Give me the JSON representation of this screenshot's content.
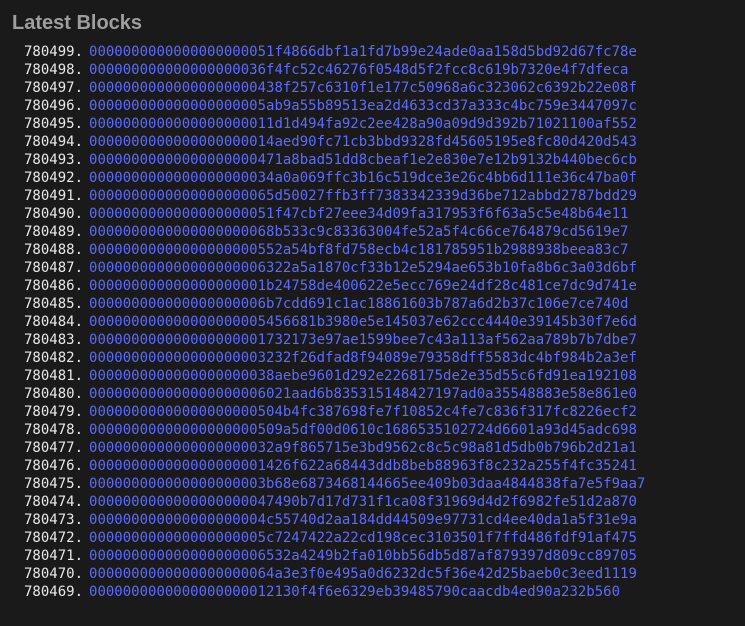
{
  "title": "Latest Blocks",
  "text_color": "#e8e8e8",
  "hash_color": "#5c6bff",
  "title_color": "#9e9e9e",
  "background_color": "#1a1a1a",
  "font_size": 14,
  "line_height": 18,
  "blocks": [
    {
      "height": "780499",
      "hash": "0000000000000000000051f4866dbf1a1fd7b99e24ade0aa158d5bd92d67fc78e"
    },
    {
      "height": "780498",
      "hash": "000000000000000000036f4fc52c46276f0548d5f2fcc8c619b7320e4f7dfeca"
    },
    {
      "height": "780497",
      "hash": "00000000000000000000438f257c6310f1e177c50968a6c323062c6392b22e08f"
    },
    {
      "height": "780496",
      "hash": "000000000000000000005ab9a55b89513ea2d4633cd37a333c4bc759e3447097c"
    },
    {
      "height": "780495",
      "hash": "0000000000000000000011d1d494fa92c2ee428a90a09d9d392b71021100af552"
    },
    {
      "height": "780494",
      "hash": "0000000000000000000014aed90fc71cb3bbd9328fd45605195e8fc80d420d543"
    },
    {
      "height": "780493",
      "hash": "00000000000000000000471a8bad51dd8cbeaf1e2e830e7e12b9132b440bec6cb"
    },
    {
      "height": "780492",
      "hash": "0000000000000000000034a0a069ffc3b16c519dce3e26c4bb6d111e36c47ba0f"
    },
    {
      "height": "780491",
      "hash": "0000000000000000000065d50027ffb3ff7383342339d36be712abbd2787bdd29"
    },
    {
      "height": "780490",
      "hash": "0000000000000000000051f47cbf27eee34d09fa317953f6f63a5c5e48b64e11"
    },
    {
      "height": "780489",
      "hash": "0000000000000000000068b533c9c83363004fe52a5f4c66ce764879cd5619e7"
    },
    {
      "height": "780488",
      "hash": "00000000000000000000552a54bf8fd758ecb4c181785951b2988938beea83c7"
    },
    {
      "height": "780487",
      "hash": "000000000000000000006322a5a1870cf33b12e5294ae653b10fa8b6c3a03d6bf"
    },
    {
      "height": "780486",
      "hash": "000000000000000000001b24758de400622e5ecc769e24df28c481ce7dc9d741e"
    },
    {
      "height": "780485",
      "hash": "000000000000000000006b7cdd691c1ac18861603b787a6d2b37c106e7ce740d"
    },
    {
      "height": "780484",
      "hash": "000000000000000000005456681b3980e5e145037e62ccc4440e39145b30f7e6d"
    },
    {
      "height": "780483",
      "hash": "000000000000000000001732173e97ae1599bee7c43a113af562aa789b7b7dbe7"
    },
    {
      "height": "780482",
      "hash": "000000000000000000003232f26dfad8f94089e79358dff5583dc4bf984b2a3ef"
    },
    {
      "height": "780481",
      "hash": "0000000000000000000038aebe9601d292e2268175de2e35d55c6fd91ea192108"
    },
    {
      "height": "780480",
      "hash": "000000000000000000006021aad6b835315148427197ad0a35548883e58e861e0"
    },
    {
      "height": "780479",
      "hash": "00000000000000000000504b4fc387698fe7f10852c4fe7c836f317fc8226ecf2"
    },
    {
      "height": "780478",
      "hash": "00000000000000000000509a5df00d0610c1686535102724d6601a93d45adc698"
    },
    {
      "height": "780477",
      "hash": "0000000000000000000032a9f865715e3bd9562c8c5c98a81d5db0b796b2d21a1"
    },
    {
      "height": "780476",
      "hash": "000000000000000000001426f622a68443ddb8beb88963f8c232a255f4fc35241"
    },
    {
      "height": "780475",
      "hash": "000000000000000000003b68e6873468144665ee409b03daa4844838fa7e5f9aa7"
    },
    {
      "height": "780474",
      "hash": "0000000000000000000047490b7d17d731f1ca08f31969d4d2f6982fe51d2a870"
    },
    {
      "height": "780473",
      "hash": "000000000000000000004c55740d2aa184dd44509e97731cd4ee40da1a5f31e9a"
    },
    {
      "height": "780472",
      "hash": "000000000000000000005c7247422a22cd198cec3103501f7ffd486fdf91af475"
    },
    {
      "height": "780471",
      "hash": "000000000000000000006532a4249b2fa010bb56db5d87af879397d809cc89705"
    },
    {
      "height": "780470",
      "hash": "0000000000000000000064a3e3f0e495a0d6232dc5f36e42d25baeb0c3eed1119"
    },
    {
      "height": "780469",
      "hash": "0000000000000000000012130f4f6e6329eb39485790caacdb4ed90a232b560"
    }
  ]
}
